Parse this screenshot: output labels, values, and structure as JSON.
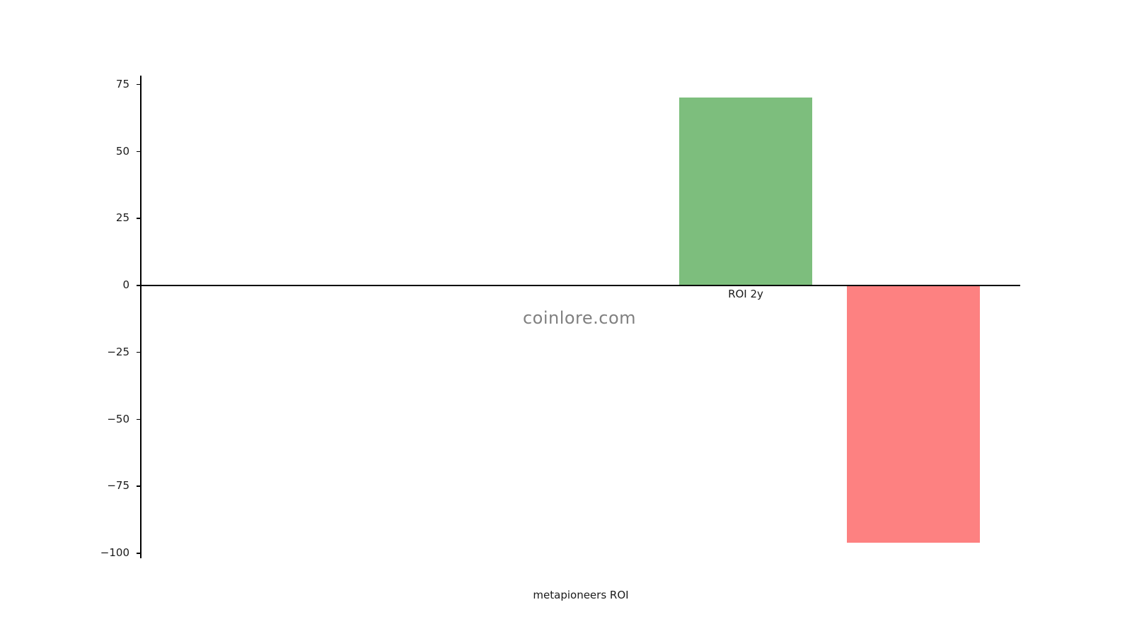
{
  "watermark": {
    "text": "coinlore.com",
    "color": "#808080"
  },
  "chart_data": {
    "type": "bar",
    "title": "",
    "xlabel": "metapioneers ROI",
    "ylabel": "",
    "categories": [
      "ROI 2y",
      ""
    ],
    "values": [
      70,
      -96
    ],
    "bar_colors": [
      "#7dbe7d",
      "#fd8181"
    ],
    "yticks": [
      75,
      50,
      25,
      0,
      -25,
      -50,
      -75,
      -100
    ],
    "ylim": [
      -102,
      78
    ],
    "grid": false,
    "legend": null,
    "axis_color": "#000000",
    "watermark": "coinlore.com"
  }
}
